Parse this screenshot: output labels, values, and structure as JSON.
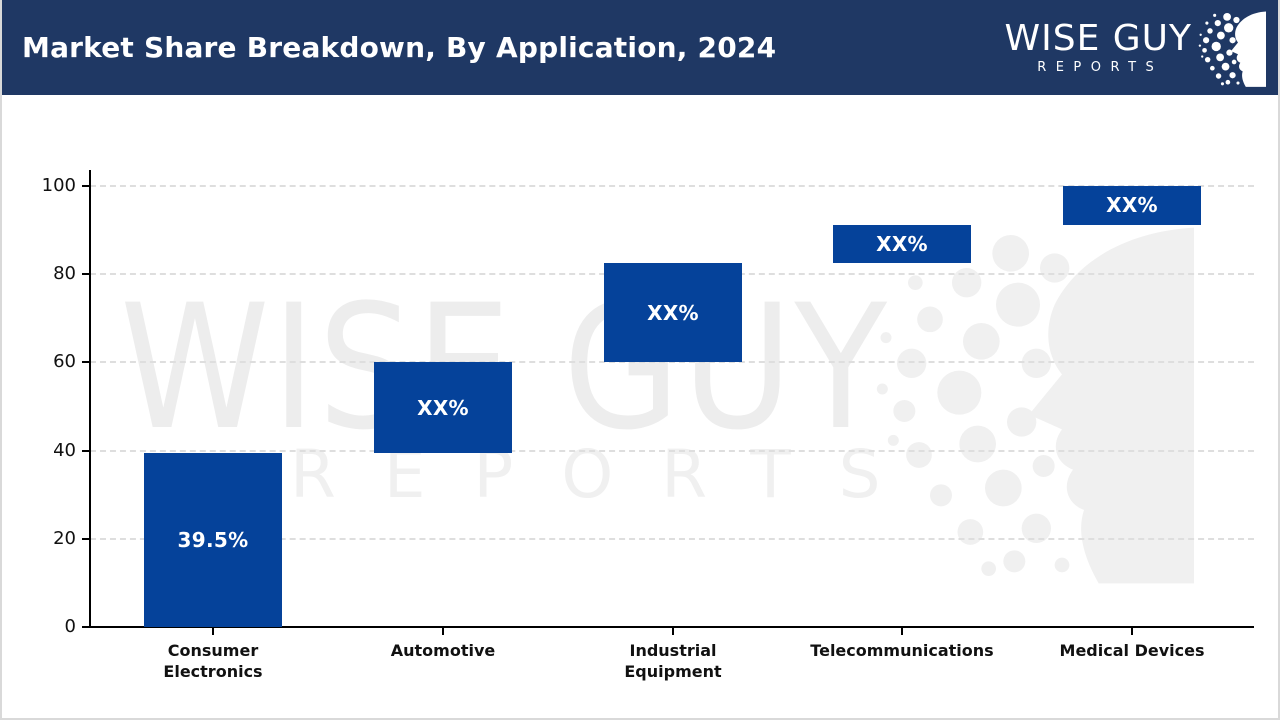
{
  "header": {
    "title": "Market Share Breakdown, By Application, 2024",
    "logo": {
      "name": "WISE GUY",
      "sub": "REPORTS"
    }
  },
  "watermark": {
    "name": "WISE GUY",
    "sub": "REPORTS"
  },
  "colors": {
    "header_bg": "#1f3864",
    "bar": "#05429a",
    "gridline": "#dedede",
    "axis": "#000000",
    "bar_value_text": "#ffffff",
    "watermark": "#efefef",
    "page_border": "#d9d9d9"
  },
  "chart_data": {
    "type": "bar",
    "subtype": "floating-waterfall",
    "categories": [
      "Consumer Electronics",
      "Automotive",
      "Industrial Equipment",
      "Telecommunications",
      "Medical Devices"
    ],
    "categories_lines": [
      [
        "Consumer",
        "Electronics"
      ],
      [
        "Automotive"
      ],
      [
        "Industrial",
        "Equipment"
      ],
      [
        "Telecommunications"
      ],
      [
        "Medical Devices"
      ]
    ],
    "segments": [
      {
        "category": "Consumer Electronics",
        "start": 0,
        "end": 39.5,
        "label": "39.5%"
      },
      {
        "category": "Automotive",
        "start": 39.5,
        "end": 60,
        "label": "XX%"
      },
      {
        "category": "Industrial Equipment",
        "start": 60,
        "end": 82.5,
        "label": "XX%"
      },
      {
        "category": "Telecommunications",
        "start": 82.5,
        "end": 91.25,
        "label": "XX%"
      },
      {
        "category": "Medical Devices",
        "start": 91.25,
        "end": 100,
        "label": "XX%"
      }
    ],
    "yticks": [
      0,
      20,
      40,
      60,
      80,
      100
    ],
    "ylim": [
      0,
      105
    ],
    "xlabel": "",
    "ylabel": "",
    "grid": "horizontal-dashed",
    "legend": "none"
  }
}
